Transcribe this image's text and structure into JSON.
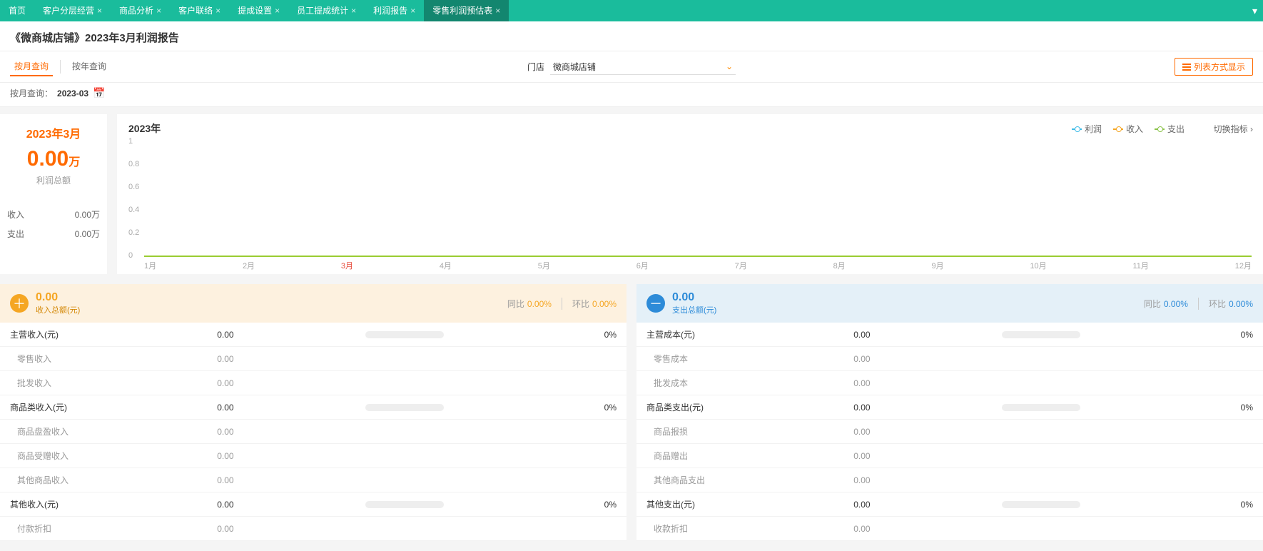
{
  "colors": {
    "brand": "#1abc9c",
    "brand_dark": "#13866f",
    "accent": "#ff6a00",
    "income": "#f5a623",
    "expense": "#2d8bd8",
    "line_profit": "#3fbce8",
    "line_income": "#f5a623",
    "line_expense": "#8bc34a"
  },
  "topbar": {
    "tabs": [
      {
        "label": "首页",
        "closable": false
      },
      {
        "label": "客户分层经营",
        "closable": true
      },
      {
        "label": "商品分析",
        "closable": true
      },
      {
        "label": "客户联络",
        "closable": true
      },
      {
        "label": "提成设置",
        "closable": true
      },
      {
        "label": "员工提成统计",
        "closable": true
      },
      {
        "label": "利润报告",
        "closable": true
      },
      {
        "label": "零售利润预估表",
        "closable": true,
        "active": true
      }
    ]
  },
  "page_title": "《微商城店铺》2023年3月利润报告",
  "query": {
    "tab_month": "按月查询",
    "tab_year": "按年查询",
    "active_tab": "month",
    "store_label": "门店",
    "store_value": "微商城店铺",
    "list_mode_btn": "列表方式显示",
    "sub_label": "按月查询：",
    "sub_value": "2023-03"
  },
  "summary": {
    "period": "2023年3月",
    "profit_value": "0.00",
    "profit_unit": "万",
    "profit_label": "利润总额",
    "income_label": "收入",
    "income_value": "0.00万",
    "expense_label": "支出",
    "expense_value": "0.00万"
  },
  "chart": {
    "title": "2023年",
    "legend": [
      {
        "name": "利润",
        "color": "#3fbce8"
      },
      {
        "name": "收入",
        "color": "#f5a623"
      },
      {
        "name": "支出",
        "color": "#8bc34a"
      }
    ],
    "switch_label": "切换指标",
    "y_ticks": [
      "1",
      "0.8",
      "0.6",
      "0.4",
      "0.2",
      "0"
    ],
    "x_labels": [
      "1月",
      "2月",
      "3月",
      "4月",
      "5月",
      "6月",
      "7月",
      "8月",
      "9月",
      "10月",
      "11月",
      "12月"
    ],
    "current_x_index": 2
  },
  "income_panel": {
    "amount": "0.00",
    "label": "收入总额(元)",
    "yoy_label": "同比",
    "yoy_value": "0.00%",
    "mom_label": "环比",
    "mom_value": "0.00%",
    "rows": [
      {
        "type": "cat",
        "name": "主营收入(元)",
        "value": "0.00",
        "pct": "0%"
      },
      {
        "type": "sub",
        "name": "零售收入",
        "value": "0.00"
      },
      {
        "type": "sub",
        "name": "批发收入",
        "value": "0.00"
      },
      {
        "type": "cat",
        "name": "商品类收入(元)",
        "value": "0.00",
        "pct": "0%"
      },
      {
        "type": "sub",
        "name": "商品盘盈收入",
        "value": "0.00"
      },
      {
        "type": "sub",
        "name": "商品受赠收入",
        "value": "0.00"
      },
      {
        "type": "sub",
        "name": "其他商品收入",
        "value": "0.00"
      },
      {
        "type": "cat",
        "name": "其他收入(元)",
        "value": "0.00",
        "pct": "0%"
      },
      {
        "type": "sub",
        "name": "付款折扣",
        "value": "0.00"
      }
    ]
  },
  "expense_panel": {
    "amount": "0.00",
    "label": "支出总额(元)",
    "yoy_label": "同比",
    "yoy_value": "0.00%",
    "mom_label": "环比",
    "mom_value": "0.00%",
    "rows": [
      {
        "type": "cat",
        "name": "主营成本(元)",
        "value": "0.00",
        "pct": "0%"
      },
      {
        "type": "sub",
        "name": "零售成本",
        "value": "0.00"
      },
      {
        "type": "sub",
        "name": "批发成本",
        "value": "0.00"
      },
      {
        "type": "cat",
        "name": "商品类支出(元)",
        "value": "0.00",
        "pct": "0%"
      },
      {
        "type": "sub",
        "name": "商品报损",
        "value": "0.00"
      },
      {
        "type": "sub",
        "name": "商品赠出",
        "value": "0.00"
      },
      {
        "type": "sub",
        "name": "其他商品支出",
        "value": "0.00"
      },
      {
        "type": "cat",
        "name": "其他支出(元)",
        "value": "0.00",
        "pct": "0%"
      },
      {
        "type": "sub",
        "name": "收款折扣",
        "value": "0.00"
      }
    ]
  }
}
